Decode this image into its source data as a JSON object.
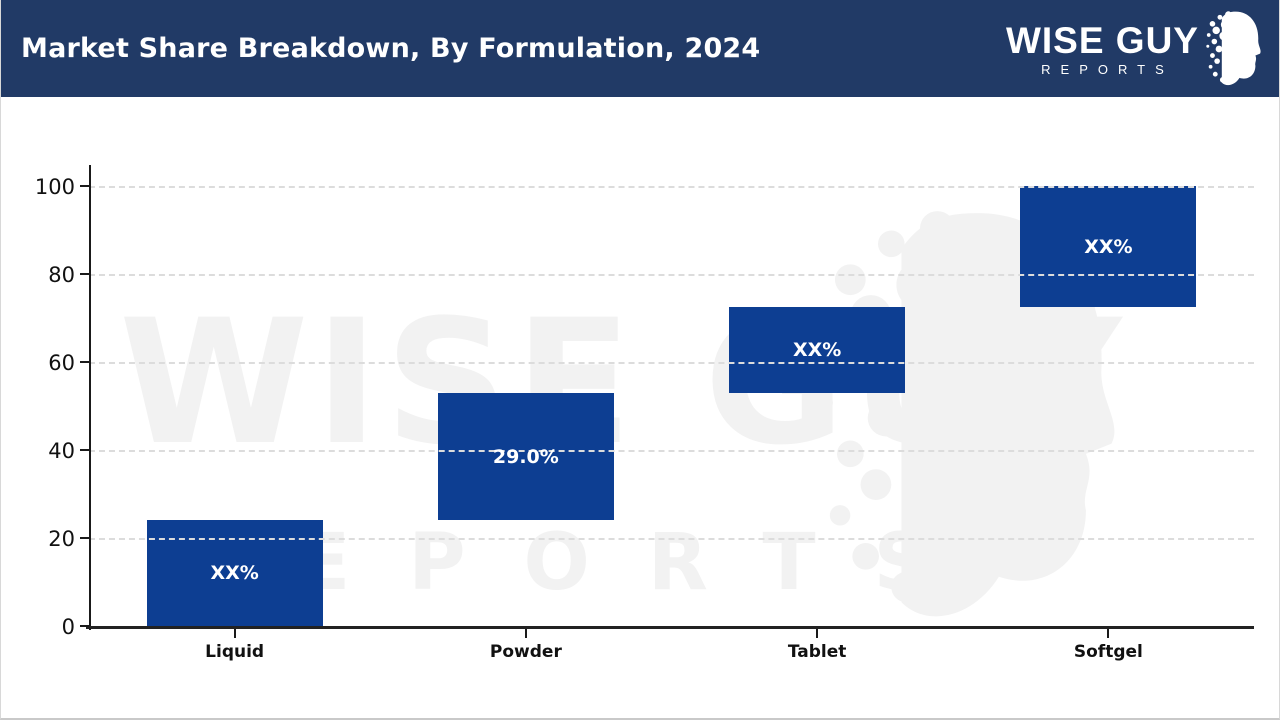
{
  "header": {
    "title": "Market Share Breakdown, By Formulation, 2024",
    "logo": {
      "line1": "WISE GUY",
      "line2": "REPORTS"
    }
  },
  "watermark": {
    "line1": "WISE GUY",
    "line2": "REPORTS"
  },
  "colors": {
    "header_bg": "#213a66",
    "bar": "#0d3e92",
    "gridline": "#dcdcdc",
    "axis": "#1a1a1a",
    "bar_label_text": "#ffffff",
    "watermark": "#f2f2f2"
  },
  "chart_data": {
    "type": "bar",
    "subtype": "waterfall-floating-bars",
    "title": "Market Share Breakdown, By Formulation, 2024",
    "categories": [
      "Liquid",
      "Powder",
      "Tablet",
      "Softgel"
    ],
    "segments": [
      {
        "category": "Liquid",
        "start": 0,
        "end": 24,
        "label": "XX%"
      },
      {
        "category": "Powder",
        "start": 24,
        "end": 53,
        "label": "29.0%"
      },
      {
        "category": "Tablet",
        "start": 53,
        "end": 72.5,
        "label": "XX%"
      },
      {
        "category": "Softgel",
        "start": 72.5,
        "end": 100,
        "label": "XX%"
      }
    ],
    "yticks": [
      0,
      20,
      40,
      60,
      80,
      100
    ],
    "ylim": [
      0,
      104
    ],
    "xlabel": "",
    "ylabel": "",
    "grid": "horizontal-dashed",
    "legend": "none"
  }
}
